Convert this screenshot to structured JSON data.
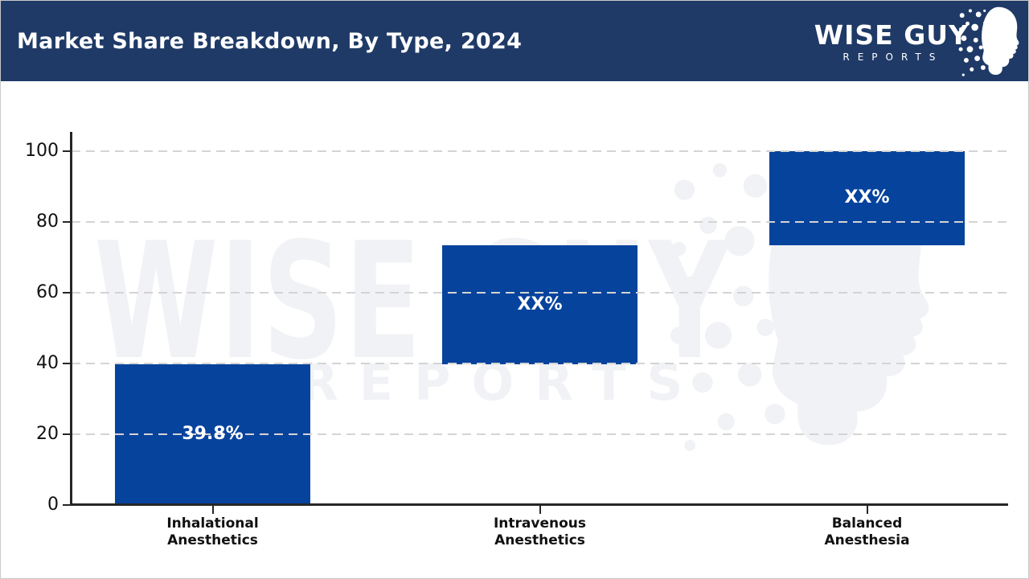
{
  "header": {
    "title": "Market Share Breakdown, By Type, 2024",
    "logo_line1": "WISE GUY",
    "logo_line2": "REPORTS"
  },
  "watermark": {
    "line1": "WISE GUY",
    "line2": "REPORTS"
  },
  "chart_data": {
    "type": "bar",
    "subtype": "waterfall",
    "title": "Market Share Breakdown, By Type, 2024",
    "categories": [
      "Inhalational\nAnesthetics",
      "Intravenous\nAnesthetics",
      "Balanced\nAnesthesia"
    ],
    "segments": [
      {
        "category": "Inhalational Anesthetics",
        "start": 0,
        "end": 39.8,
        "label": "39.8%"
      },
      {
        "category": "Intravenous Anesthetics",
        "start": 39.8,
        "end": 73.5,
        "label": "XX%"
      },
      {
        "category": "Balanced Anesthesia",
        "start": 73.5,
        "end": 100,
        "label": "XX%"
      }
    ],
    "ylim": [
      0,
      100
    ],
    "yticks": [
      0,
      20,
      40,
      60,
      80,
      100
    ],
    "grid": "horizontal-dashed",
    "legend": "none",
    "colors": {
      "bar": "#06439d",
      "header_bg": "#1f3a67",
      "grid": "#d4d4d4",
      "axis": "#262626",
      "value_label": "#ffffff"
    }
  }
}
